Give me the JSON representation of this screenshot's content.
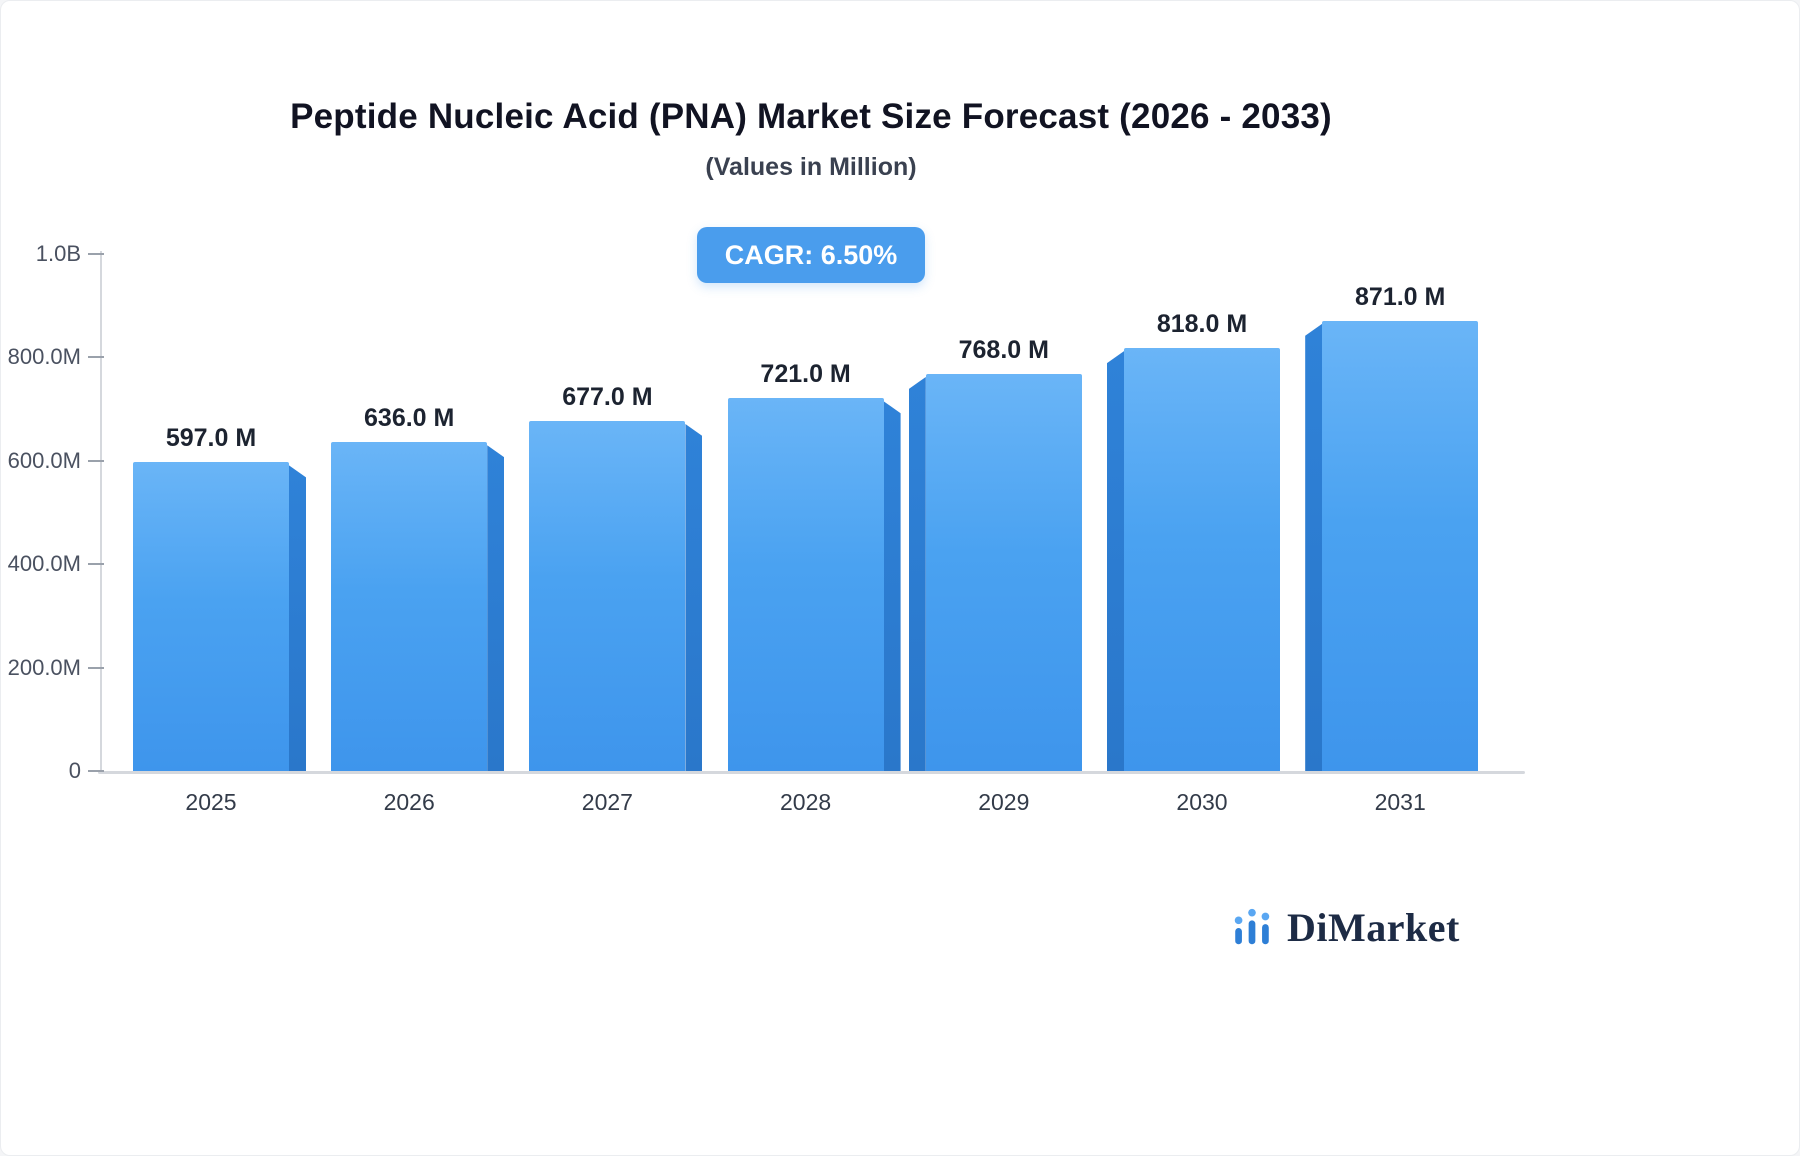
{
  "title": "Peptide Nucleic Acid (PNA) Market Size Forecast (2026 - 2033)",
  "subtitle": "(Values in Million)",
  "badge": {
    "label": "CAGR: 6.50%"
  },
  "logo": {
    "text": "DiMarket"
  },
  "chart_data": {
    "type": "bar",
    "title": "Peptide Nucleic Acid (PNA) Market Size Forecast (2026 - 2033)",
    "subtitle": "(Values in Million)",
    "categories": [
      "2025",
      "2026",
      "2027",
      "2028",
      "2029",
      "2030",
      "2031"
    ],
    "values": [
      597,
      636,
      677,
      721,
      768,
      818,
      871
    ],
    "value_labels": [
      "597.0 M",
      "636.0 M",
      "677.0 M",
      "721.0 M",
      "768.0 M",
      "818.0 M",
      "871.0 M"
    ],
    "xlabel": "",
    "ylabel": "",
    "ylim": [
      0,
      1000
    ],
    "y_ticks": [
      {
        "value": 0,
        "label": "0"
      },
      {
        "value": 200,
        "label": "200.0M"
      },
      {
        "value": 400,
        "label": "400.0M"
      },
      {
        "value": 600,
        "label": "600.0M"
      },
      {
        "value": 800,
        "label": "800.0M"
      },
      {
        "value": 1000,
        "label": "1.0B"
      }
    ],
    "grid": false,
    "legend": false,
    "annotation": "CAGR: 6.50%",
    "colors": {
      "bar_top": "#6ab5f7",
      "bar_bottom": "#3e95ec",
      "bar_side": "#2d7ed5",
      "badge_bg": "#4a9ded",
      "axis": "#d5d8dd",
      "tick_text": "#4a5160",
      "value_text": "#1c2330"
    }
  }
}
